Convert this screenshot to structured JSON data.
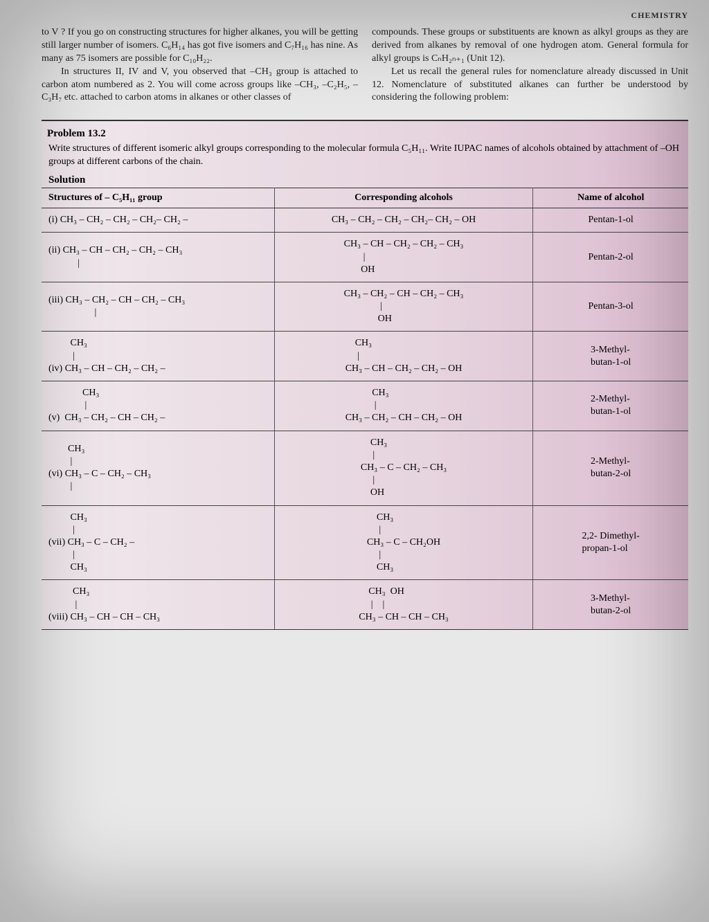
{
  "header": "CHEMISTRY",
  "leftPara": "to V ? If you go on constructing structures for higher alkanes, you will be getting still larger number of isomers. C₆H₁₄ has got five isomers and C₇H₁₆ has nine. As many as 75 isomers are possible for C₁₀H₂₂.",
  "leftPara2": "In structures II, IV and V, you observed that –CH₃ group is attached to carbon atom numbered as 2. You will come across groups like –CH₃, –C₂H₅, –C₃H₇ etc. attached to carbon atoms in alkanes or other classes of",
  "rightPara": "compounds. These groups or substituents are known as alkyl groups as they are derived from alkanes by removal of one hydrogen atom. General formula for alkyl groups is CₙH₂ₙ₊₁ (Unit 12).",
  "rightPara2": "Let us recall the general rules for nomenclature already discussed in Unit 12. Nomenclature of substituted alkanes can further be understood by considering the following problem:",
  "problem": {
    "title": "Problem 13.2",
    "text": "Write structures of different isomeric alkyl groups corresponding to the molecular formula C₅H₁₁. Write IUPAC names of alcohols obtained by attachment of –OH groups at different carbons of the chain.",
    "solution": "Solution"
  },
  "table": {
    "headers": [
      "Structures of – C₅H₁₁ group",
      "Corresponding alcohols",
      "Name of alcohol"
    ],
    "rows": [
      {
        "struct": "(i) CH₃ – CH₂ – CH₂ – CH₂– CH₂ –",
        "alc": "CH₃ – CH₂ – CH₂ – CH₂– CH₂ – OH",
        "name": "Pentan-1-ol"
      },
      {
        "struct": "(ii) CH₃ – CH – CH₂ – CH₂ – CH₃\n            |",
        "alc": "CH₃ – CH – CH₂ – CH₂ – CH₃\n        |\n       OH",
        "name": "Pentan-2-ol"
      },
      {
        "struct": "(iii) CH₃ – CH₂ – CH – CH₂ – CH₃\n                   |",
        "alc": "CH₃ – CH₂ – CH – CH₂ – CH₃\n               |\n              OH",
        "name": "Pentan-3-ol"
      },
      {
        "struct": "         CH₃\n          |\n(iv) CH₃ – CH – CH₂ – CH₂ –",
        "alc": "    CH₃\n     |\nCH₃ – CH – CH₂ – CH₂ – OH",
        "name": "3-Methyl-\nbutan-1-ol"
      },
      {
        "struct": "              CH₃\n               |\n(v)  CH₃ – CH₂ – CH – CH₂ –",
        "alc": "           CH₃\n            |\nCH₃ – CH₂ – CH – CH₂ – OH",
        "name": "2-Methyl-\nbutan-1-ol"
      },
      {
        "struct": "        CH₃\n         |\n(vi) CH₃ – C – CH₂ – CH₃\n         |",
        "alc": "    CH₃\n     |\nCH₃ – C – CH₂ – CH₃\n     |\n    OH",
        "name": "2-Methyl-\nbutan-2-ol"
      },
      {
        "struct": "         CH₃\n          |\n(vii) CH₃ – C – CH₂ –\n          |\n         CH₃",
        "alc": "    CH₃\n     |\nCH₃ – C – CH₂OH\n     |\n    CH₃",
        "name": "2,2- Dimethyl-\npropan-1-ol"
      },
      {
        "struct": "          CH₃\n           |\n(viii) CH₃ – CH – CH – CH₃",
        "alc": "    CH₃  OH\n     |    |\nCH₃ – CH – CH – CH₃",
        "name": "3-Methyl-\nbutan-2-ol"
      }
    ]
  }
}
